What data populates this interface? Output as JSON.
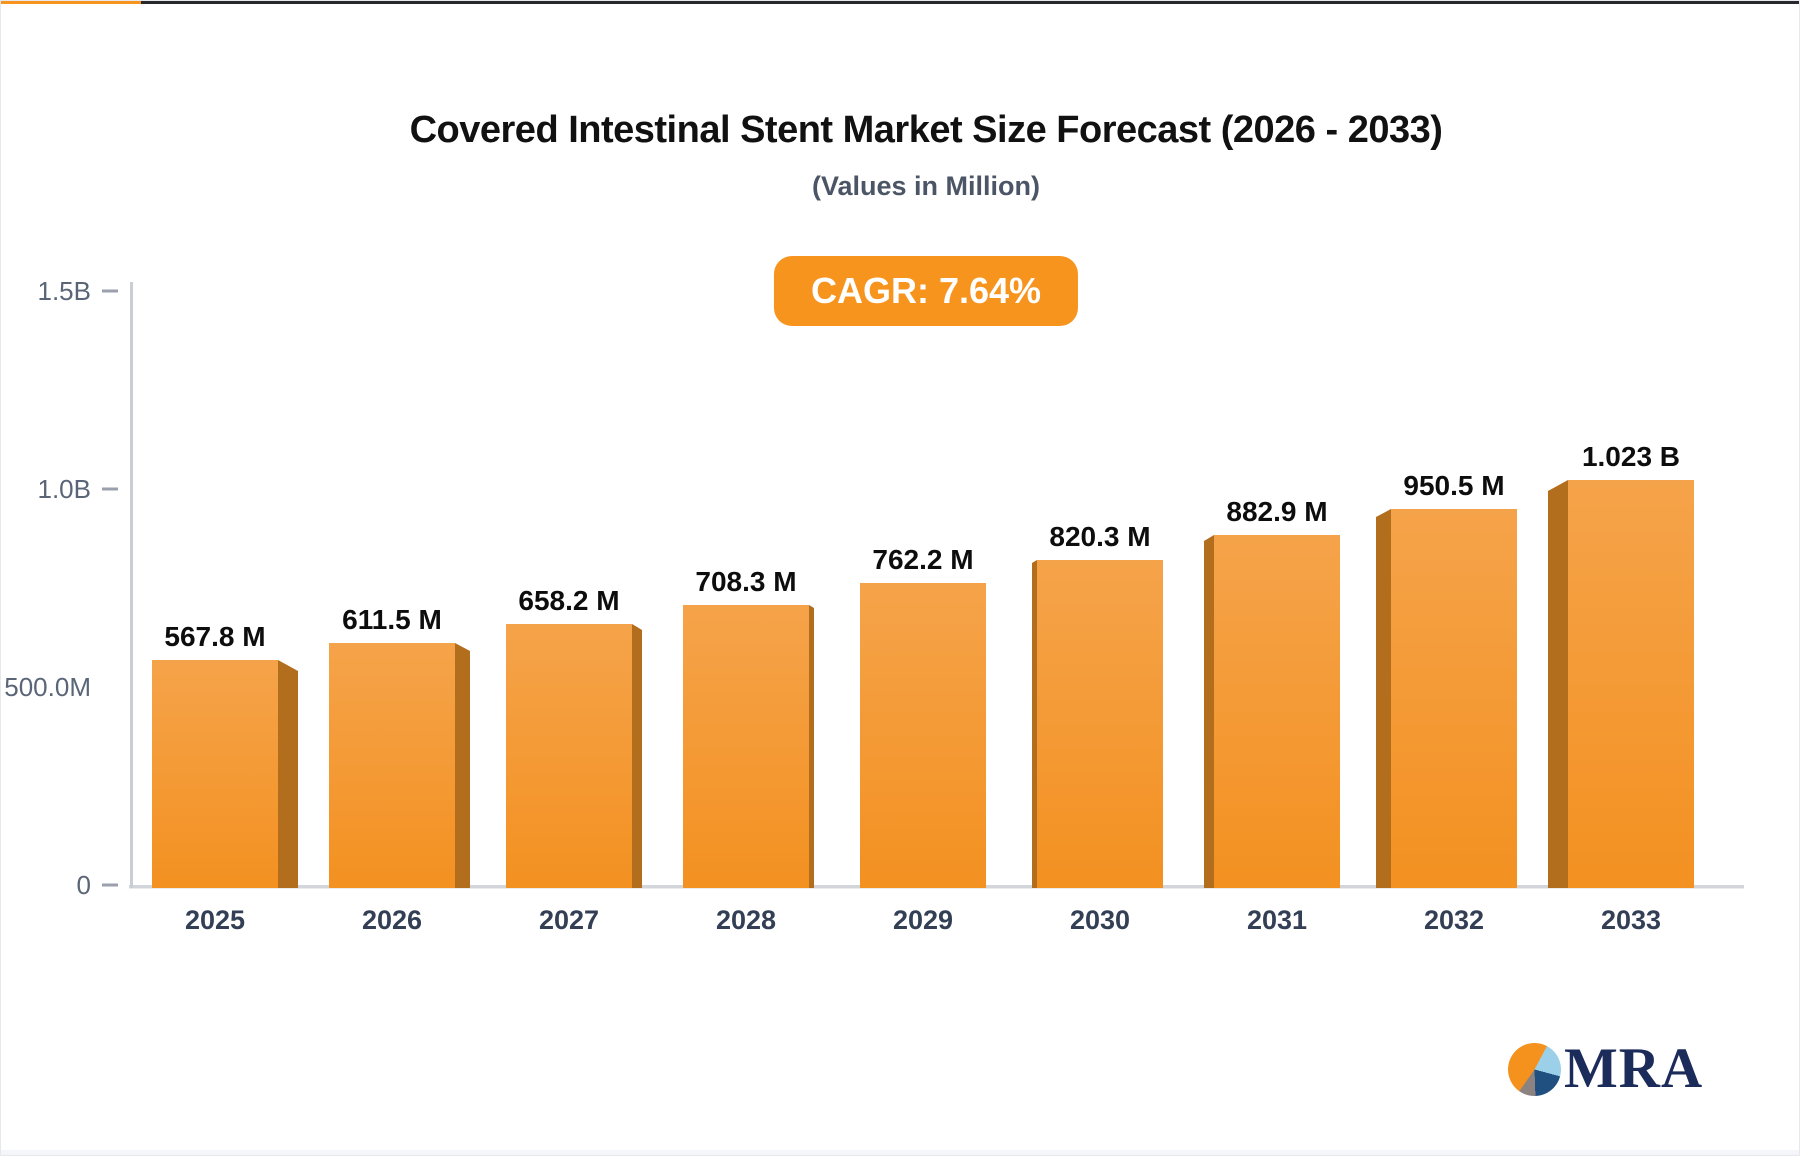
{
  "page": {
    "title": "Covered Intestinal Stent Market Size Forecast (2026 - 2033)",
    "subtitle": "(Values in Million)",
    "cagr_label": "CAGR: 7.64%"
  },
  "chart_data": {
    "type": "bar",
    "title": "Covered Intestinal Stent Market Size Forecast (2026 - 2033)",
    "subtitle": "(Values in Million)",
    "cagr": "7.64%",
    "categories": [
      "2025",
      "2026",
      "2027",
      "2028",
      "2029",
      "2030",
      "2031",
      "2032",
      "2033"
    ],
    "values": [
      567.8,
      611.5,
      658.2,
      708.3,
      762.2,
      820.3,
      882.9,
      950.5,
      1023
    ],
    "value_labels": [
      "567.8 M",
      "611.5 M",
      "658.2 M",
      "708.3 M",
      "762.2 M",
      "820.3 M",
      "882.9 M",
      "950.5 M",
      "1.023 B"
    ],
    "unit": "M",
    "ylim": [
      0,
      1500
    ],
    "yticks": [
      {
        "label": "1.5B",
        "value": 1500,
        "dash": true
      },
      {
        "label": "1.0B",
        "value": 1000,
        "dash": true
      },
      {
        "label": "500.0M",
        "value": 500,
        "dash": false
      },
      {
        "label": "0",
        "value": 0,
        "dash": true
      }
    ],
    "grid": false,
    "legend": false,
    "bar_style": "3d-bevel"
  },
  "colors": {
    "bar_face_top": "#F5A34A",
    "bar_face_bottom": "#F39121",
    "bar_side": "#B26E1D",
    "accent_orange": "#F7941E",
    "axis_line": "#C9CDD5",
    "baseline": "#D2D5DA",
    "tick_dash": "#9AA1AD",
    "title_text": "#111111",
    "subtitle_text": "#4B5566",
    "value_text": "#0D0D0D",
    "year_text": "#333F54",
    "ytick_text": "#5A6577",
    "logo_navy": "#1B2B5A",
    "logo_orange": "#F5921E",
    "logo_lightblue": "#9CCFE8",
    "logo_darkblue": "#205080",
    "logo_gray": "#8C8380"
  },
  "logo": {
    "text": "MRA",
    "icon": "pie-chart-icon"
  }
}
